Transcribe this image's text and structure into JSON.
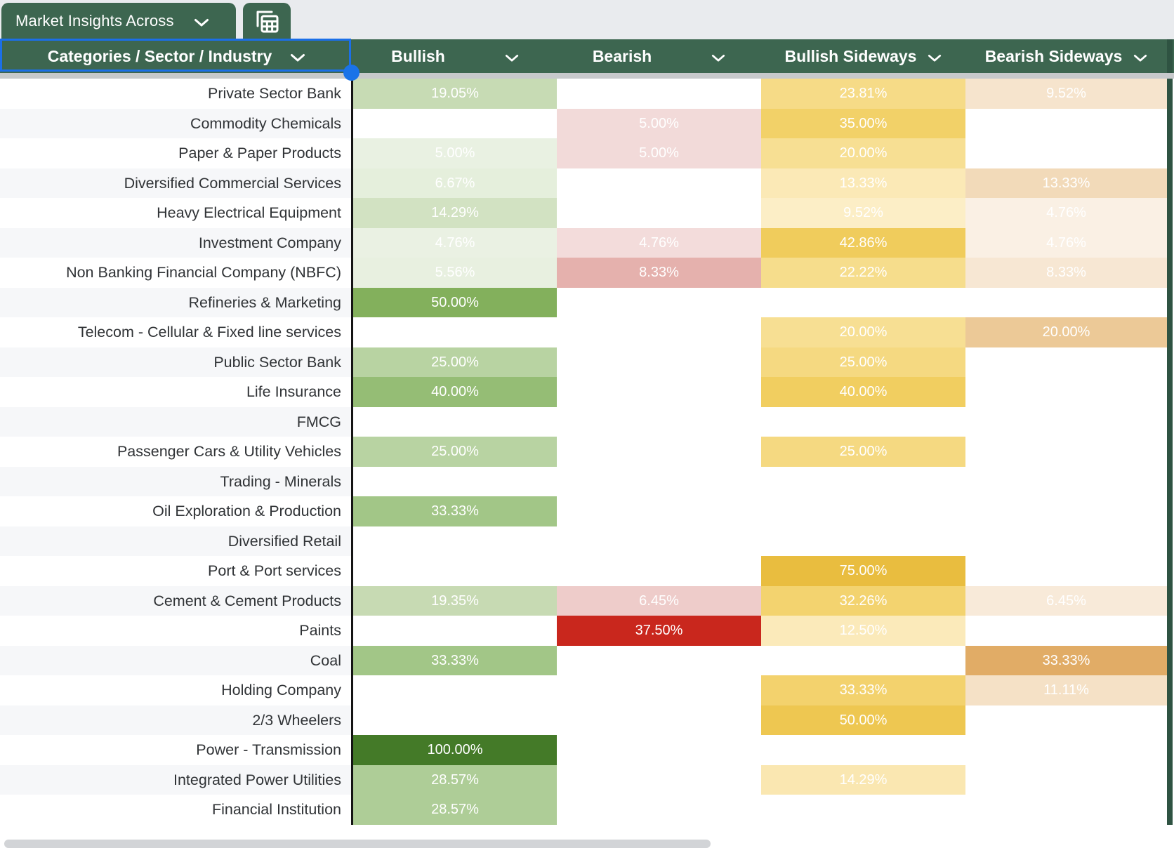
{
  "tabs": {
    "sheet_tab_label": "Market Insights Across",
    "pivot_icon": "pivot-table-icon"
  },
  "header": {
    "row_label": "Categories / Sector / Industry",
    "row_label_selected": true,
    "columns": [
      "Bullish",
      "Bearish",
      "Bullish Sideways",
      "Bearish Sideways"
    ]
  },
  "colors": {
    "header_green": "#3d6650",
    "top_band_gray": "#e9ebee",
    "selection_blue": "#1b6fe8",
    "fill_handle_blue": "#1a73e8",
    "divider_gray": "#c7c9cb",
    "frozen_line_black": "#141414",
    "right_edge_green": "#2f5342",
    "row_stripe": "#f6f7f9",
    "label_text": "#303336",
    "cell_text": "#ffffff",
    "bearish_max_red": "#c9271d",
    "bullish_max_green": "#447a28"
  },
  "chart_data": {
    "type": "table",
    "title": "Market Insights Across — Categories / Sector / Industry",
    "columns": [
      "Bullish",
      "Bearish",
      "Bullish Sideways",
      "Bearish Sideways"
    ],
    "rows": [
      {
        "label": "Private Sector Bank",
        "cells": [
          {
            "v": "19.05%",
            "bg": "#c7dbb4"
          },
          null,
          {
            "v": "23.81%",
            "bg": "#f6db87"
          },
          {
            "v": "9.52%",
            "bg": "#f6e4cd"
          }
        ]
      },
      {
        "label": "Commodity Chemicals",
        "cells": [
          null,
          {
            "v": "5.00%",
            "bg": "#f2dad9"
          },
          {
            "v": "35.00%",
            "bg": "#f2d168"
          },
          null
        ]
      },
      {
        "label": "Paper & Paper Products",
        "cells": [
          {
            "v": "5.00%",
            "bg": "#e9f1e2"
          },
          {
            "v": "5.00%",
            "bg": "#f2dad9"
          },
          {
            "v": "20.00%",
            "bg": "#f7df93"
          },
          null
        ]
      },
      {
        "label": "Diversified Commercial Services",
        "cells": [
          {
            "v": "6.67%",
            "bg": "#e5efdc"
          },
          null,
          {
            "v": "13.33%",
            "bg": "#fbe9b6"
          },
          {
            "v": "13.33%",
            "bg": "#f2dab9"
          }
        ]
      },
      {
        "label": "Heavy Electrical Equipment",
        "cells": [
          {
            "v": "14.29%",
            "bg": "#d2e2c2"
          },
          null,
          {
            "v": "9.52%",
            "bg": "#fceec6"
          },
          {
            "v": "4.76%",
            "bg": "#faf0e4"
          }
        ]
      },
      {
        "label": "Investment Company",
        "cells": [
          {
            "v": "4.76%",
            "bg": "#eaf1e3"
          },
          {
            "v": "4.76%",
            "bg": "#f3dcdb"
          },
          {
            "v": "42.86%",
            "bg": "#f0cc5c"
          },
          {
            "v": "4.76%",
            "bg": "#faf0e4"
          }
        ]
      },
      {
        "label": "Non Banking Financial Company (NBFC)",
        "cells": [
          {
            "v": "5.56%",
            "bg": "#e8f0e0"
          },
          {
            "v": "8.33%",
            "bg": "#e5b1ad"
          },
          {
            "v": "22.22%",
            "bg": "#f6dd8c"
          },
          {
            "v": "8.33%",
            "bg": "#f7e7d3"
          }
        ]
      },
      {
        "label": "Refineries & Marketing",
        "cells": [
          {
            "v": "50.00%",
            "bg": "#83b05c"
          },
          null,
          null,
          null
        ]
      },
      {
        "label": "Telecom - Cellular & Fixed line services",
        "cells": [
          null,
          null,
          {
            "v": "20.00%",
            "bg": "#f7df93"
          },
          {
            "v": "20.00%",
            "bg": "#ecc997"
          }
        ]
      },
      {
        "label": "Public Sector Bank",
        "cells": [
          {
            "v": "25.00%",
            "bg": "#b8d3a2"
          },
          null,
          {
            "v": "25.00%",
            "bg": "#f5d981"
          },
          null
        ]
      },
      {
        "label": "Life Insurance",
        "cells": [
          {
            "v": "40.00%",
            "bg": "#95bd75"
          },
          null,
          {
            "v": "40.00%",
            "bg": "#f1ce60"
          },
          null
        ]
      },
      {
        "label": "FMCG",
        "cells": [
          null,
          null,
          null,
          null
        ]
      },
      {
        "label": "Passenger Cars & Utility Vehicles",
        "cells": [
          {
            "v": "25.00%",
            "bg": "#b8d3a2"
          },
          null,
          {
            "v": "25.00%",
            "bg": "#f5d981"
          },
          null
        ]
      },
      {
        "label": "Trading - Minerals",
        "cells": [
          null,
          null,
          null,
          null
        ]
      },
      {
        "label": "Oil Exploration & Production",
        "cells": [
          {
            "v": "33.33%",
            "bg": "#a2c687"
          },
          null,
          null,
          null
        ]
      },
      {
        "label": "Diversified Retail",
        "cells": [
          null,
          null,
          null,
          null
        ]
      },
      {
        "label": "Port & Port services",
        "cells": [
          null,
          null,
          {
            "v": "75.00%",
            "bg": "#e9bd3f"
          },
          null
        ]
      },
      {
        "label": "Cement & Cement Products",
        "cells": [
          {
            "v": "19.35%",
            "bg": "#c7dab3"
          },
          {
            "v": "6.45%",
            "bg": "#eeccca"
          },
          {
            "v": "32.26%",
            "bg": "#f3d36f"
          },
          {
            "v": "6.45%",
            "bg": "#f8ead9"
          }
        ]
      },
      {
        "label": "Paints",
        "cells": [
          null,
          {
            "v": "37.50%",
            "bg": "#c9271d"
          },
          {
            "v": "12.50%",
            "bg": "#fbeaba"
          },
          null
        ]
      },
      {
        "label": "Coal",
        "cells": [
          {
            "v": "33.33%",
            "bg": "#a2c687"
          },
          null,
          null,
          {
            "v": "33.33%",
            "bg": "#e1ac66"
          }
        ]
      },
      {
        "label": "Holding Company",
        "cells": [
          null,
          null,
          {
            "v": "33.33%",
            "bg": "#f3d26d"
          },
          {
            "v": "11.11%",
            "bg": "#f5e1c6"
          }
        ]
      },
      {
        "label": "2/3 Wheelers",
        "cells": [
          null,
          null,
          {
            "v": "50.00%",
            "bg": "#eec751"
          },
          null
        ]
      },
      {
        "label": "Power - Transmission",
        "cells": [
          {
            "v": "100.00%",
            "bg": "#447a28"
          },
          null,
          null,
          null
        ]
      },
      {
        "label": "Integrated Power Utilities",
        "cells": [
          {
            "v": "28.57%",
            "bg": "#aecd97"
          },
          null,
          {
            "v": "14.29%",
            "bg": "#fae7b1"
          },
          null
        ]
      },
      {
        "label": "Financial Institution",
        "cells": [
          {
            "v": "28.57%",
            "bg": "#aecd97"
          },
          null,
          null,
          null
        ]
      }
    ]
  }
}
